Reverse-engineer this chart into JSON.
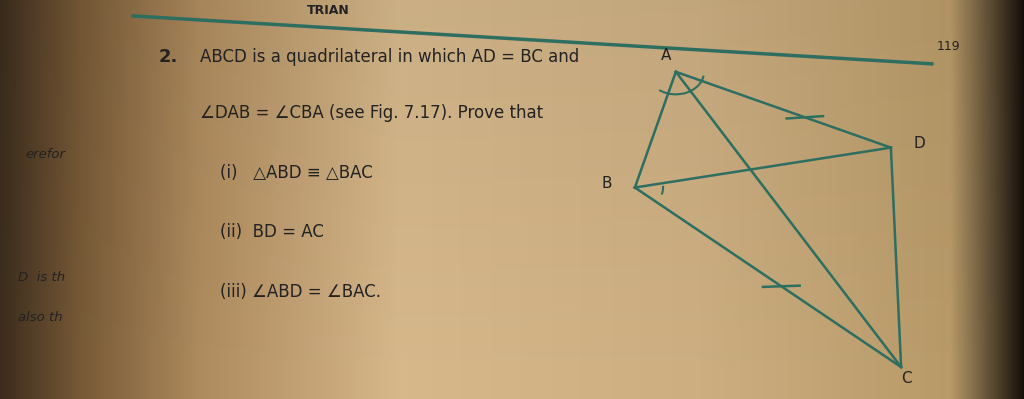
{
  "bg_left_color": "#a89070",
  "bg_mid_color": "#d4bc96",
  "bg_right_color": "#c8b090",
  "spine_dark": "#7a6040",
  "text_color": "#222222",
  "green_color": "#2d6e60",
  "problem_number": "2.",
  "title_line1": "ABCD is a quadrilateral in which AD = BC and",
  "title_line2": "∠DAB = ∠CBA (see Fig. 7.17). Prove that",
  "item1": "(i)   △ABD ≡ △BAC",
  "item2": "(ii)  BD = AC",
  "item3": "(iii) ∠ABD = ∠BAC.",
  "page_num": "119",
  "header": "TRIAN",
  "left_text1": "erefor",
  "left_text2": "D  is th",
  "left_text3": "also th",
  "A": [
    0.66,
    0.82
  ],
  "B": [
    0.62,
    0.53
  ],
  "C": [
    0.88,
    0.08
  ],
  "D": [
    0.87,
    0.63
  ]
}
